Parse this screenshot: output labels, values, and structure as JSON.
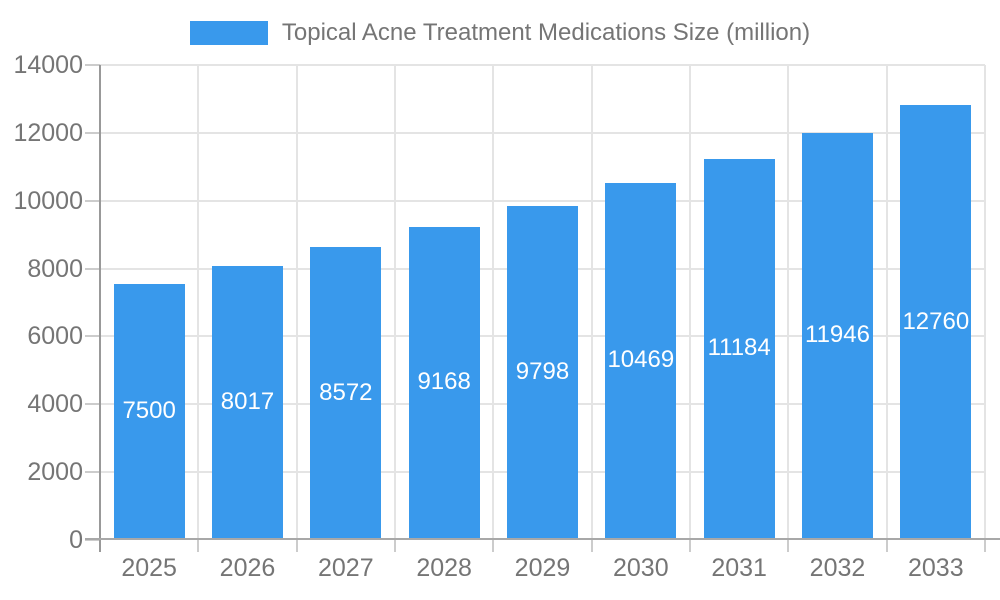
{
  "legend": {
    "label": "Topical Acne Treatment Medications Size (million)"
  },
  "chart_data": {
    "type": "bar",
    "title": "Topical Acne Treatment Medications Size (million)",
    "categories": [
      "2025",
      "2026",
      "2027",
      "2028",
      "2029",
      "2030",
      "2031",
      "2032",
      "2033"
    ],
    "series": [
      {
        "name": "Topical Acne Treatment Medications Size (million)",
        "values": [
          7500,
          8017,
          8572,
          9168,
          9798,
          10469,
          11184,
          11946,
          12760
        ]
      }
    ],
    "xlabel": "",
    "ylabel": "",
    "ylim": [
      0,
      14000
    ],
    "yticks": [
      0,
      2000,
      4000,
      6000,
      8000,
      10000,
      12000,
      14000
    ],
    "grid": true,
    "legend_position": "top",
    "value_label_position": "inside-center",
    "colors": {
      "bar": "#3999EC",
      "value_label": "#FFFFFF",
      "axis_line": "#999999",
      "x_axis_line": "#A8A8A8",
      "gridline": "#E4E4E4",
      "tick": "#CCCCCC",
      "text": "#757575",
      "background": "#FFFFFF"
    }
  }
}
